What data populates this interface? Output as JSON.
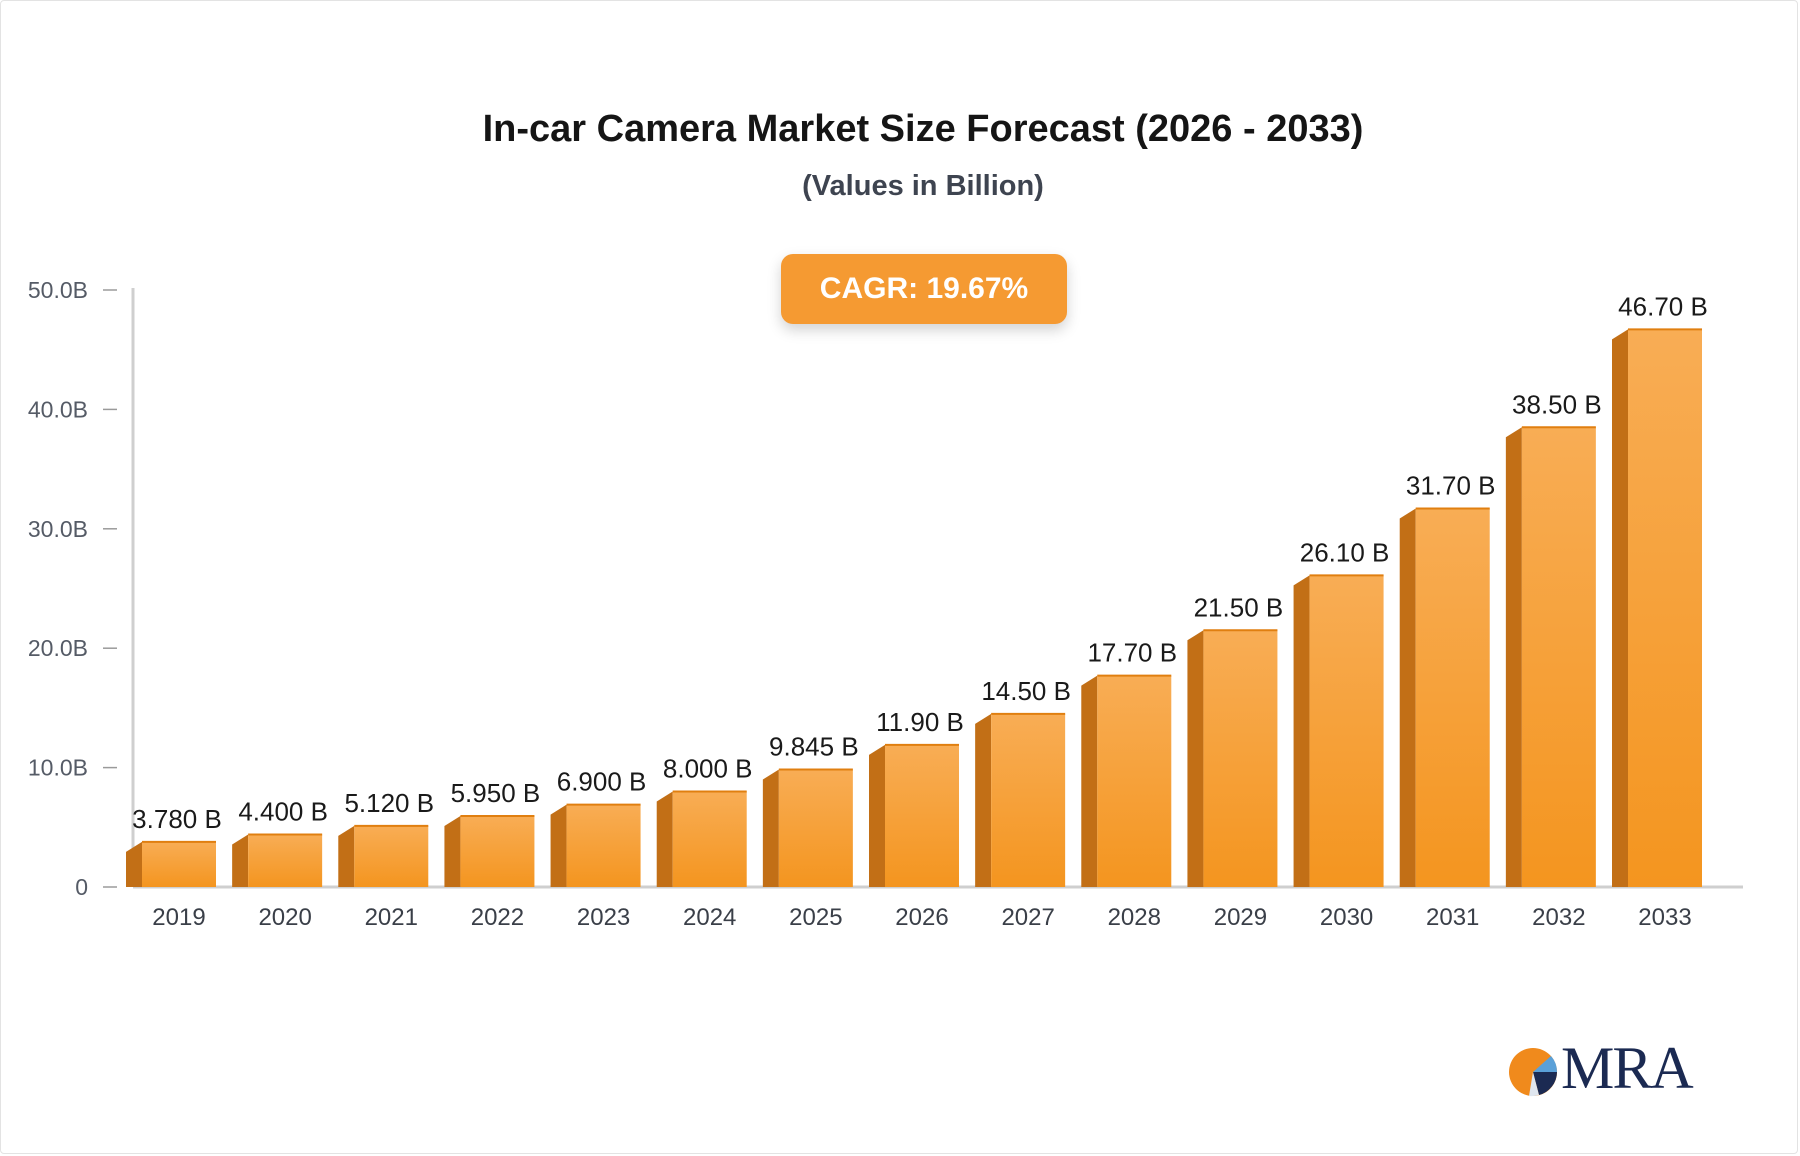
{
  "chart_data": {
    "type": "bar",
    "title": "In-car Camera Market Size Forecast (2026 - 2033)",
    "subtitle": "(Values in Billion)",
    "badge": "CAGR: 19.67%",
    "categories": [
      "2019",
      "2020",
      "2021",
      "2022",
      "2023",
      "2024",
      "2025",
      "2026",
      "2027",
      "2028",
      "2029",
      "2030",
      "2031",
      "2032",
      "2033"
    ],
    "values": [
      3.78,
      4.4,
      5.12,
      5.95,
      6.9,
      8.0,
      9.845,
      11.9,
      14.5,
      17.7,
      21.5,
      26.1,
      31.7,
      38.5,
      46.7
    ],
    "data_labels": [
      "3.780 B",
      "4.400 B",
      "5.120 B",
      "5.950 B",
      "6.900 B",
      "8.000 B",
      "9.845 B",
      "11.90 B",
      "14.50 B",
      "17.70 B",
      "21.50 B",
      "26.10 B",
      "31.70 B",
      "38.50 B",
      "46.70 B"
    ],
    "y_ticks": [
      0,
      10,
      20,
      30,
      40,
      50
    ],
    "y_tick_labels": [
      "0",
      "10.0B",
      "20.0B",
      "30.0B",
      "40.0B",
      "50.0B"
    ],
    "ylim": [
      0,
      50
    ],
    "xlabel": "",
    "ylabel": "",
    "grid": false,
    "colors": {
      "bar_front_top": "#f8ad55",
      "bar_front_bottom": "#f4951f",
      "bar_side": "#c26f16",
      "badge": "#f59a32",
      "axis": "#cfcfcf"
    }
  },
  "logo": {
    "text": "MRA",
    "colors": [
      "#f08a1c",
      "#1b2a52",
      "#5aa0d8"
    ]
  }
}
